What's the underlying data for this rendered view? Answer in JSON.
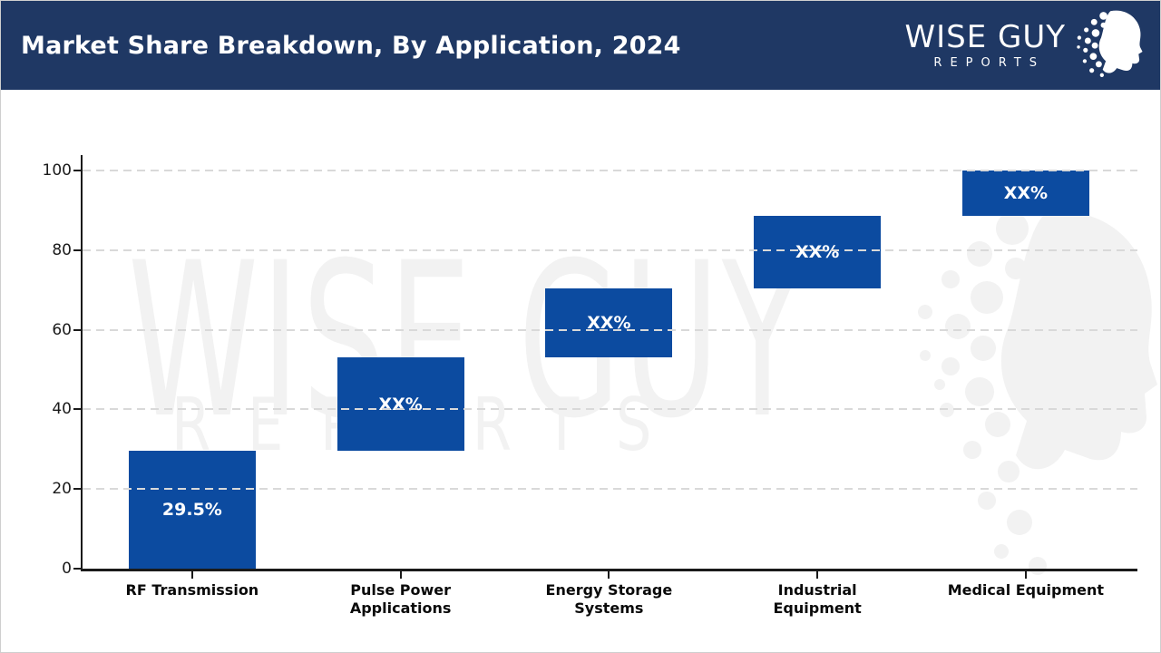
{
  "header": {
    "title": "Market Share Breakdown, By Application, 2024",
    "bg_color": "#1f3864",
    "logo": {
      "line1": "WISE GUY",
      "line2": "REPORTS"
    }
  },
  "watermark": {
    "line1": "WISE GUY",
    "line2": "REPORTS"
  },
  "chart_data": {
    "type": "bar",
    "subtype": "waterfall",
    "title": "Market Share Breakdown, By Application, 2024",
    "categories": [
      "RF Transmission",
      "Pulse Power\nApplications",
      "Energy Storage\nSystems",
      "Industrial\nEquipment",
      "Medical Equipment"
    ],
    "bars": [
      {
        "category": "RF Transmission",
        "start": 0,
        "end": 29.5,
        "label": "29.5%"
      },
      {
        "category": "Pulse Power Applications",
        "start": 29.5,
        "end": 53,
        "label": "XX%"
      },
      {
        "category": "Energy Storage Systems",
        "start": 53,
        "end": 70.5,
        "label": "XX%"
      },
      {
        "category": "Industrial Equipment",
        "start": 70.5,
        "end": 88.5,
        "label": "XX%"
      },
      {
        "category": "Medical Equipment",
        "start": 88.5,
        "end": 100,
        "label": "XX%"
      }
    ],
    "y_ticks": [
      0,
      20,
      40,
      60,
      80,
      100
    ],
    "ylim": [
      0,
      100
    ],
    "xlabel": "",
    "ylabel": "",
    "grid": "horizontal-dashed, drawn above bars",
    "legend": "none",
    "bar_color": "#0c4ba0",
    "bar_label_color": "#ffffff",
    "grid_color": "#d9d9d9",
    "axis_color": "#1a1a1a"
  }
}
